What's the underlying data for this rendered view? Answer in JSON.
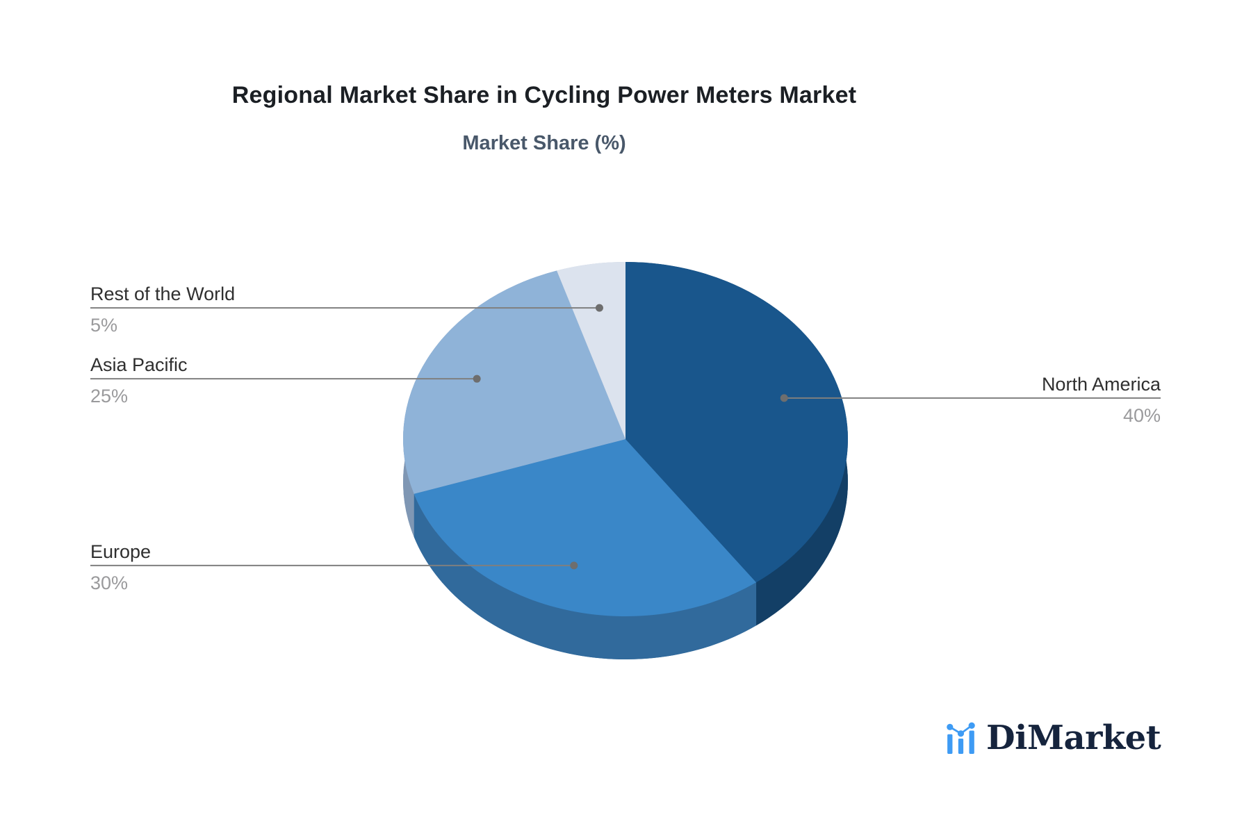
{
  "title": "Regional Market Share in Cycling Power Meters Market",
  "subtitle": "Market Share (%)",
  "logo": {
    "text": "DiMarket",
    "icon": "bar-line-chart-icon",
    "icon_color": "#3E9BF4",
    "text_color": "#16243D"
  },
  "chart_data": {
    "type": "pie",
    "title": "Regional Market Share in Cycling Power Meters Market",
    "subtitle": "Market Share (%)",
    "unit": "%",
    "effect_3d": true,
    "direction": "clockwise",
    "start_angle_deg": 0,
    "legend": "none (leader-line labels)",
    "slices": [
      {
        "label": "North America",
        "value": 40,
        "color": "#19568C",
        "side_color": "#133F66",
        "label_side": "right"
      },
      {
        "label": "Europe",
        "value": 30,
        "color": "#3A87C8",
        "side_color": "#316A9C",
        "label_side": "left"
      },
      {
        "label": "Asia Pacific",
        "value": 25,
        "color": "#8FB3D8",
        "side_color": "#7F97B4",
        "label_side": "left"
      },
      {
        "label": "Rest of the World",
        "value": 5,
        "color": "#DCE3EE",
        "side_color": "#BCC7D6",
        "label_side": "left"
      }
    ],
    "leader_line_color": "#7F7F7F",
    "leader_dot_color": "#6E6E6E",
    "label_color": "#2F2F2F",
    "value_color": "#9A9A9C",
    "title_color": "#1B1F24",
    "subtitle_color": "#49586A"
  }
}
